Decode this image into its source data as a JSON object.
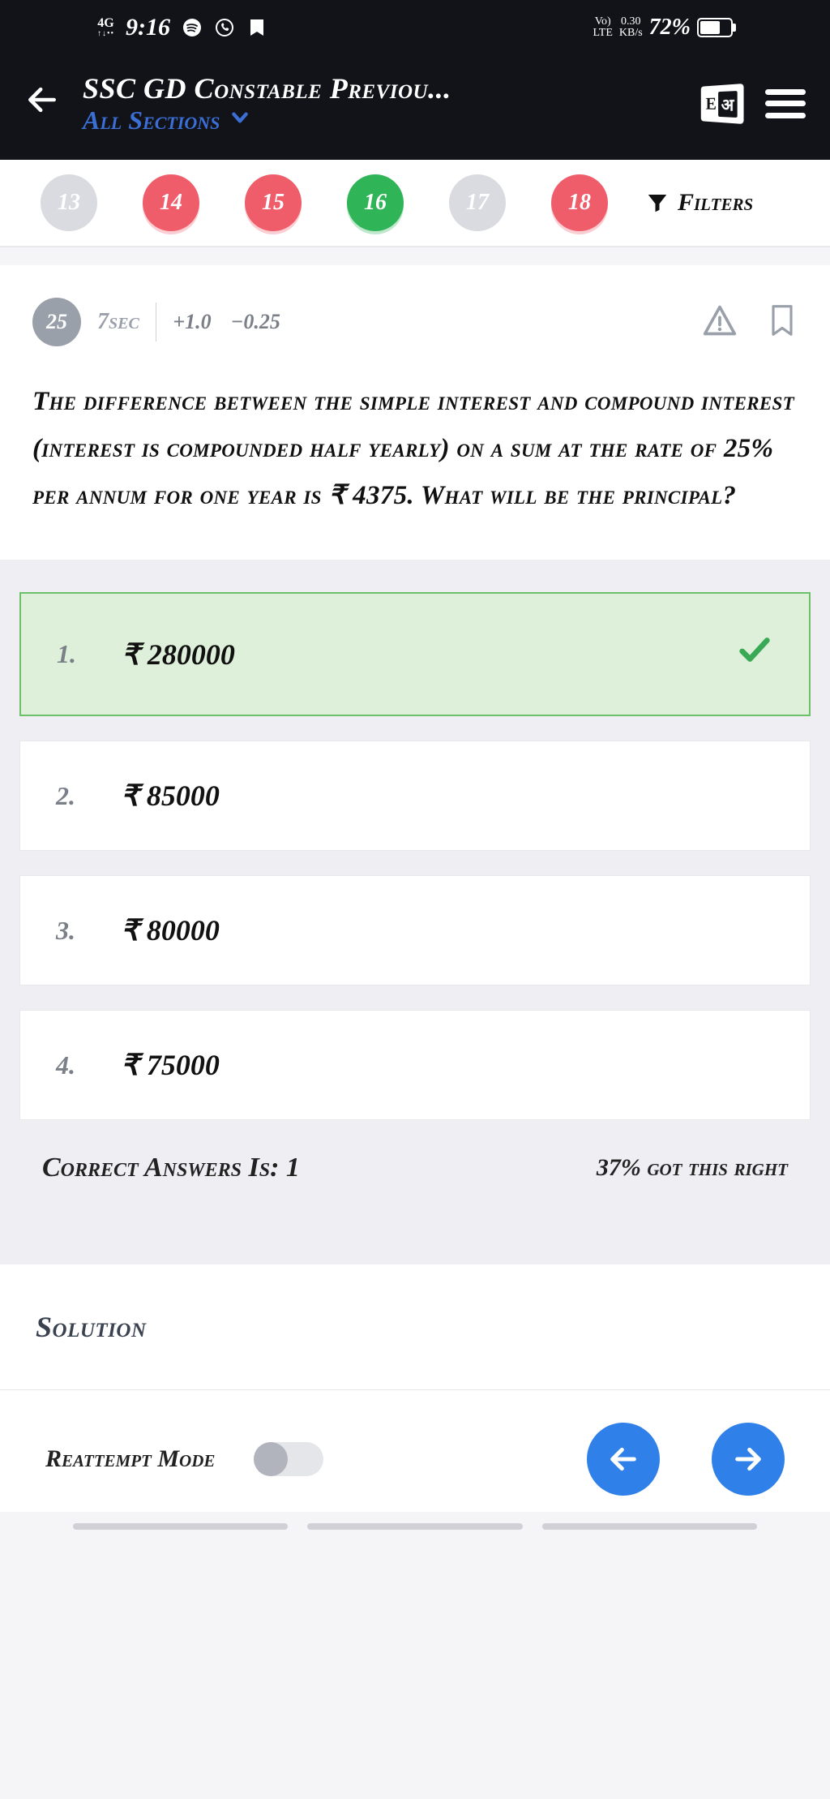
{
  "status": {
    "network": "4G",
    "time": "9:16",
    "vol": "Vo)",
    "lte": "LTE",
    "speed_top": "0.30",
    "speed_unit": "KB/s",
    "battery_pct": "72%"
  },
  "header": {
    "title": "SSC GD Constable Previou...",
    "subtitle": "All Sections",
    "lang_en": "E",
    "lang_hi": "अ"
  },
  "qnav": {
    "items": [
      {
        "n": "13",
        "cls": "gray"
      },
      {
        "n": "14",
        "cls": "red"
      },
      {
        "n": "15",
        "cls": "red"
      },
      {
        "n": "16",
        "cls": "green"
      },
      {
        "n": "17",
        "cls": "gray"
      },
      {
        "n": "18",
        "cls": "red"
      }
    ],
    "filters": "Filters"
  },
  "question": {
    "id": "25",
    "time": "7sec",
    "pos": "+1.0",
    "neg": "−0.25",
    "text": "The difference between the simple interest and compound interest (interest is compounded half yearly) on a sum at the rate of 25% per annum for one year is ₹ 4375. What will be the principal?"
  },
  "options": [
    {
      "num": "1.",
      "text": "₹ 280000",
      "correct": true
    },
    {
      "num": "2.",
      "text": "₹ 85000",
      "correct": false
    },
    {
      "num": "3.",
      "text": "₹ 80000",
      "correct": false
    },
    {
      "num": "4.",
      "text": "₹ 75000",
      "correct": false
    }
  ],
  "result": {
    "correct": "Correct Answers Is: 1",
    "got_right": "37% got this right"
  },
  "solution": {
    "title": "Solution"
  },
  "bottom": {
    "reattempt": "Reattempt Mode"
  }
}
